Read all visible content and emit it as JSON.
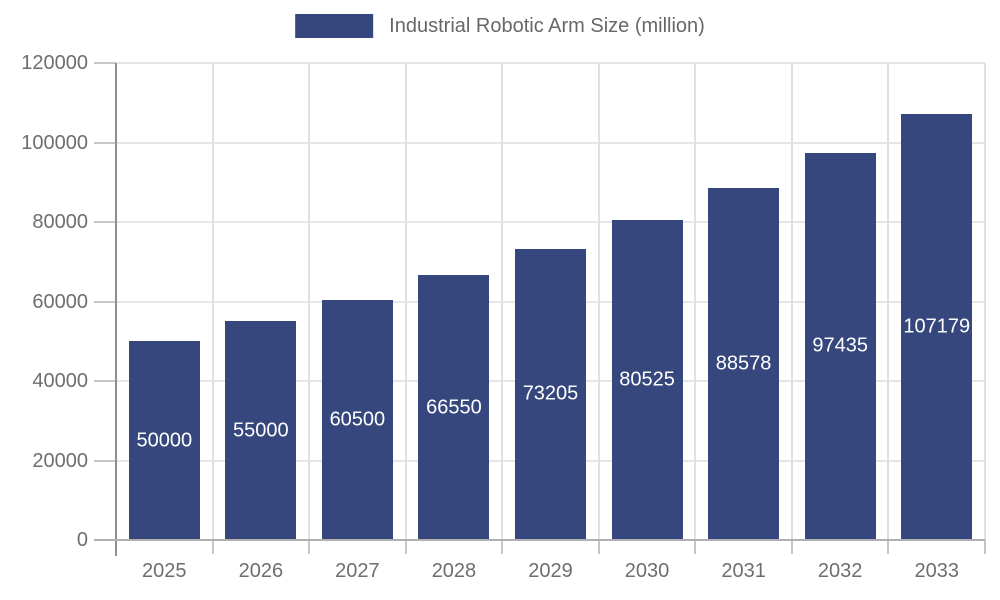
{
  "legend": {
    "label": "Industrial Robotic Arm Size (million)"
  },
  "chart_data": {
    "type": "bar",
    "title": "Industrial Robotic Arm Size (million)",
    "categories": [
      "2025",
      "2026",
      "2027",
      "2028",
      "2029",
      "2030",
      "2031",
      "2032",
      "2033"
    ],
    "values": [
      50000,
      55000,
      60500,
      66550,
      73205,
      80525,
      88578,
      97435,
      107179
    ],
    "xlabel": "",
    "ylabel": "",
    "ylim": [
      0,
      120000
    ],
    "yticks": [
      0,
      20000,
      40000,
      60000,
      80000,
      100000,
      120000
    ],
    "grid": true,
    "legend_position": "top-center",
    "bar_color": "#35477d",
    "value_label_color": "#ffffff"
  },
  "colors": {
    "background": "#ffffff",
    "bar": "#35477d",
    "grid_horizontal": "#e6e6e6",
    "grid_vertical": "#e0e0e0",
    "y_axis_line": "#8f8f8f",
    "x_baseline": "#b0b0b0",
    "tick": "#c6c6c6",
    "tick_label": "#6e6e6e",
    "legend_text": "#676767",
    "value_label": "#ffffff"
  }
}
